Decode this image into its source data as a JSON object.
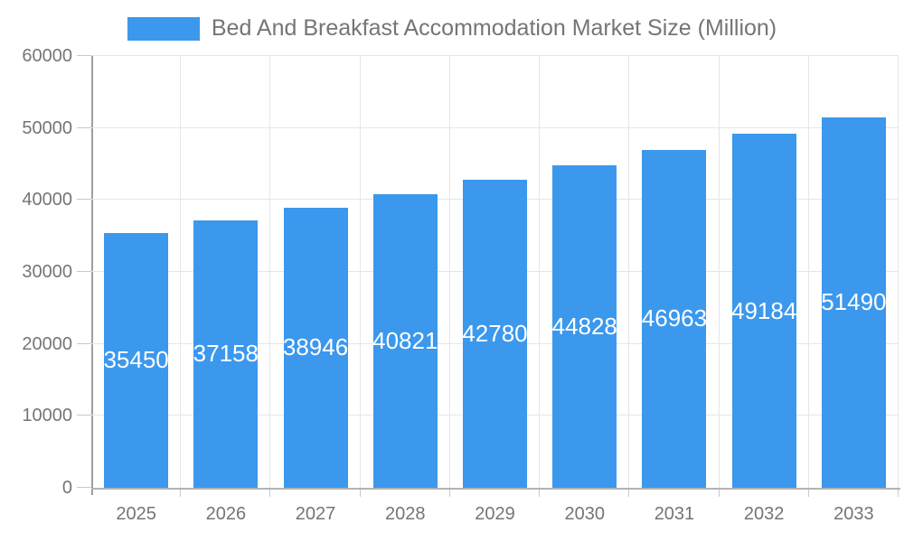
{
  "legend": {
    "label": "Bed And Breakfast Accommodation Market Size (Million)"
  },
  "chart_data": {
    "type": "bar",
    "title": "Bed And Breakfast Accommodation Market Size (Million)",
    "categories": [
      "2025",
      "2026",
      "2027",
      "2028",
      "2029",
      "2030",
      "2031",
      "2032",
      "2033"
    ],
    "values": [
      35450,
      37158,
      38946,
      40821,
      42780,
      44828,
      46963,
      49184,
      51490
    ],
    "xlabel": "",
    "ylabel": "",
    "ylim": [
      0,
      60000
    ],
    "yticks": [
      0,
      10000,
      20000,
      30000,
      40000,
      50000,
      60000
    ],
    "grid": true,
    "legend_position": "top",
    "bar_color": "#3b98ed",
    "value_label_color": "#ffffff",
    "axis_text_color": "#757575"
  }
}
